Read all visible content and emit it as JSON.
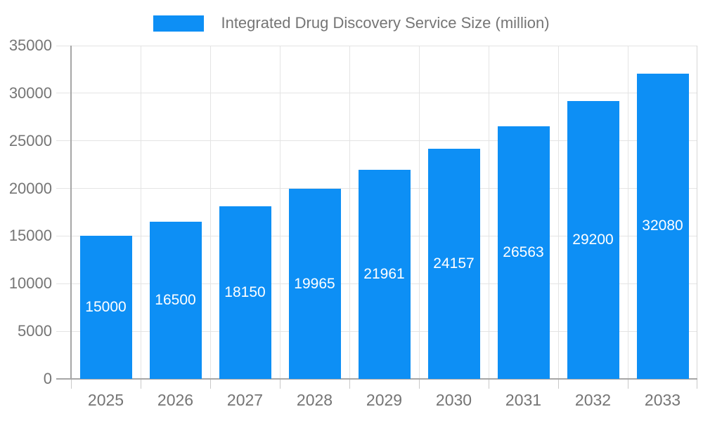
{
  "chart_data": {
    "type": "bar",
    "title": "Integrated Drug Discovery Service Size (million)",
    "categories": [
      "2025",
      "2026",
      "2027",
      "2028",
      "2029",
      "2030",
      "2031",
      "2032",
      "2033"
    ],
    "series": [
      {
        "name": "Integrated Drug Discovery Service Size (million)",
        "values": [
          15000,
          16500,
          18150,
          19965,
          21961,
          24157,
          26563,
          29200,
          32080
        ]
      }
    ],
    "bar_value_labels": [
      "15000",
      "16500",
      "18150",
      "19965",
      "21961",
      "24157",
      "26563",
      "29200",
      "32080"
    ],
    "xlabel": "",
    "ylabel": "",
    "ylim": [
      0,
      35000
    ],
    "y_ticks": [
      0,
      5000,
      10000,
      15000,
      20000,
      25000,
      30000,
      35000
    ],
    "grid": true,
    "legend_position": "top-center"
  },
  "colors": {
    "bar": "#0D8FF5",
    "grid": "#E4E4E4",
    "axis": "#A6A6A6",
    "x_tick": "#C9C9C9",
    "right_border": "#D6D6D6",
    "axis_text": "#757575",
    "bar_label_text": "#FFFFFF",
    "background": "#FFFFFF"
  }
}
